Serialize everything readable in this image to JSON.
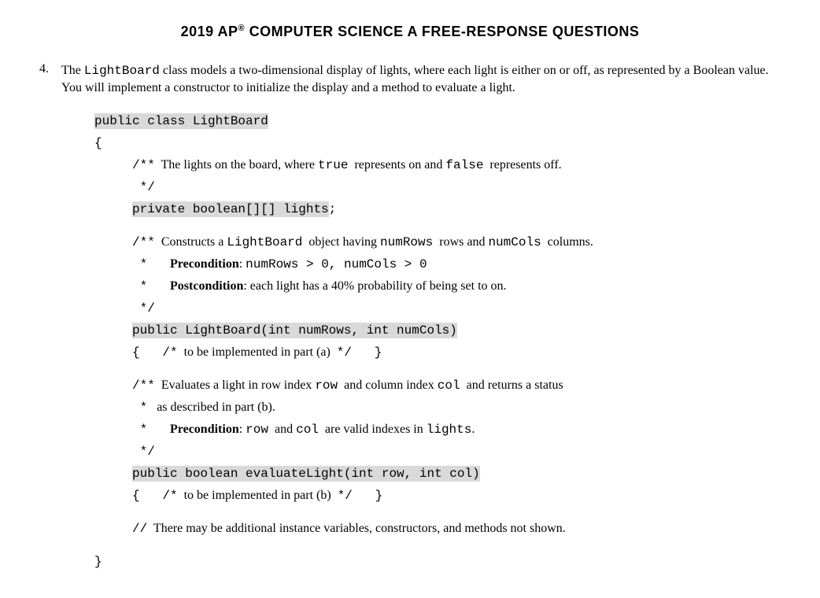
{
  "header": {
    "year": "2019",
    "prefix": "AP",
    "reg": "®",
    "rest": " COMPUTER SCIENCE A FREE-RESPONSE QUESTIONS"
  },
  "question": {
    "number": "4.",
    "intro_p1": "The ",
    "class_name": "LightBoard",
    "intro_p2": " class models a two-dimensional display of lights, where each light is either on or off, as represented by a Boolean value. You will implement a constructor to initialize the display and a method to evaluate a light."
  },
  "code": {
    "class_decl": "public class LightBoard",
    "open_brace": "{",
    "comment1_open": "/**",
    "comment1_text": "  The lights on the board, where ",
    "kw_true": "true",
    "comment1_mid": "  represents on and ",
    "kw_false": "false",
    "comment1_end": "  represents off.",
    "comment1_close": " */",
    "field_decl": "private boolean[][] lights",
    "semicolon": ";",
    "comment2_open": "/**",
    "comment2_l1a": "  Constructs a ",
    "comment2_l1b": "LightBoard",
    "comment2_l1c": "  object having ",
    "comment2_l1d": "numRows",
    "comment2_l1e": "  rows and ",
    "comment2_l1f": "numCols",
    "comment2_l1g": "  columns.",
    "star": " *",
    "precond_label": "Precondition",
    "comment2_l2": "numRows > 0, numCols > 0",
    "postcond_label": "Postcondition",
    "comment2_l3": ": each light has a 40% probability of being set to on.",
    "comment_close": " */",
    "ctor_sig": "public LightBoard(int numRows, int numCols)",
    "impl_a_open": "{   ",
    "impl_a_cmt": "/*  to be implemented in part (a)  */",
    "impl_a_close": "   }",
    "comment3_l1a": "  Evaluates a light in row index ",
    "comment3_l1b": "row",
    "comment3_l1c": "  and column index ",
    "comment3_l1d": "col",
    "comment3_l1e": "  and returns a status",
    "comment3_l2": "   as described in part (b).",
    "comment3_l3a": "row",
    "comment3_l3b": "  and ",
    "comment3_l3c": "col",
    "comment3_l3d": "  are valid indexes in ",
    "comment3_l3e": "lights",
    "period": ".",
    "method_sig": "public boolean evaluateLight(int row, int col)",
    "impl_b_cmt": "/*  to be implemented in part (b)  */",
    "trailing_cmt": "//  There may be additional instance variables, constructors, and methods not shown.",
    "close_brace": "}",
    "colon_sp": ": "
  }
}
